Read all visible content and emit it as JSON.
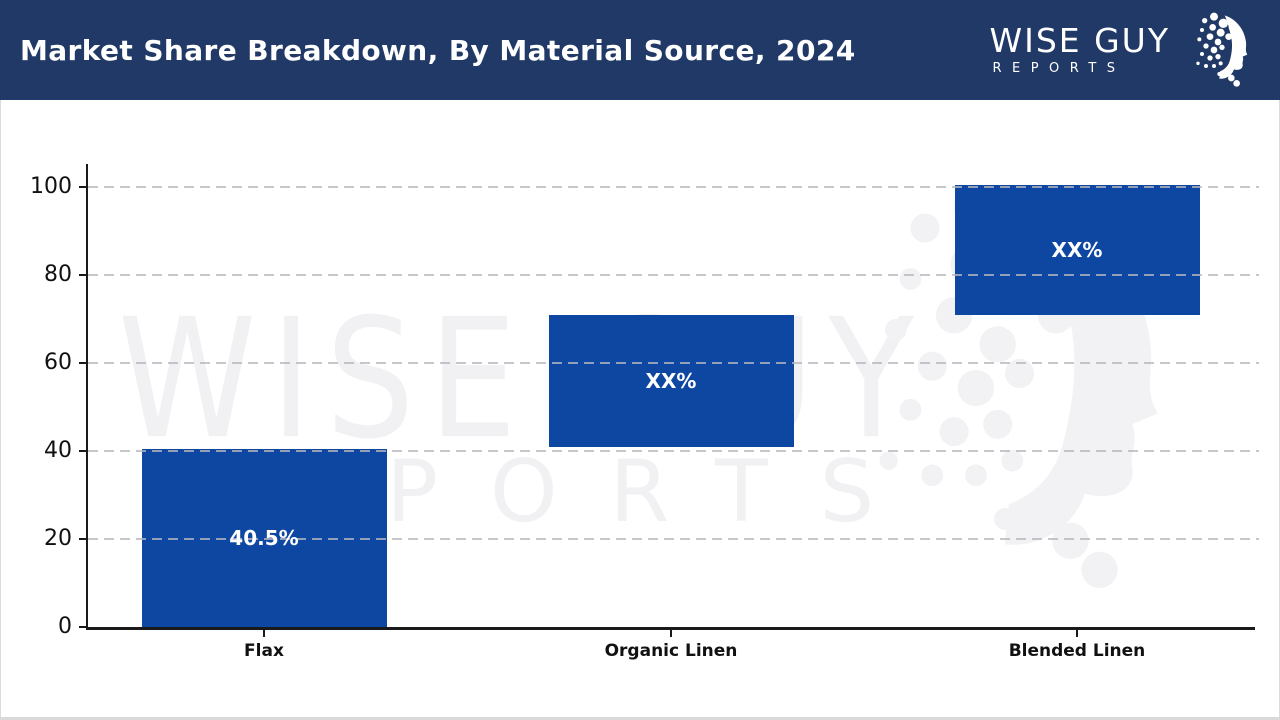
{
  "header": {
    "title": "Market Share Breakdown, By Material Source, 2024",
    "logo": {
      "line1": "WISE GUY",
      "line2": "REPORTS"
    }
  },
  "watermark": {
    "line1": "WISE GUY",
    "line2": "REPORTS"
  },
  "chart_data": {
    "type": "bar",
    "subtype": "floating-waterfall",
    "title": "Market Share Breakdown, By Material Source, 2024",
    "categories": [
      "Flax",
      "Organic Linen",
      "Blended Linen"
    ],
    "segments": [
      {
        "category": "Flax",
        "start": 0,
        "end": 40.5,
        "label": "40.5%"
      },
      {
        "category": "Organic Linen",
        "start": 41,
        "end": 71,
        "label": "XX%"
      },
      {
        "category": "Blended Linen",
        "start": 71,
        "end": 100.5,
        "label": "XX%"
      }
    ],
    "yticks": [
      0,
      20,
      40,
      60,
      80,
      100
    ],
    "ylim": [
      0,
      105
    ],
    "xlabel": "",
    "ylabel": "",
    "grid": "horizontal-dashed",
    "legend": "none",
    "bar_color": "#0d47a1",
    "bar_label_color": "#ffffff"
  },
  "colors": {
    "header_bg": "#213966",
    "axis": "#1a1a1a",
    "grid": "#b7b7be",
    "watermark": "#f1f1f3",
    "bottom_border": "#d9d9d9"
  }
}
